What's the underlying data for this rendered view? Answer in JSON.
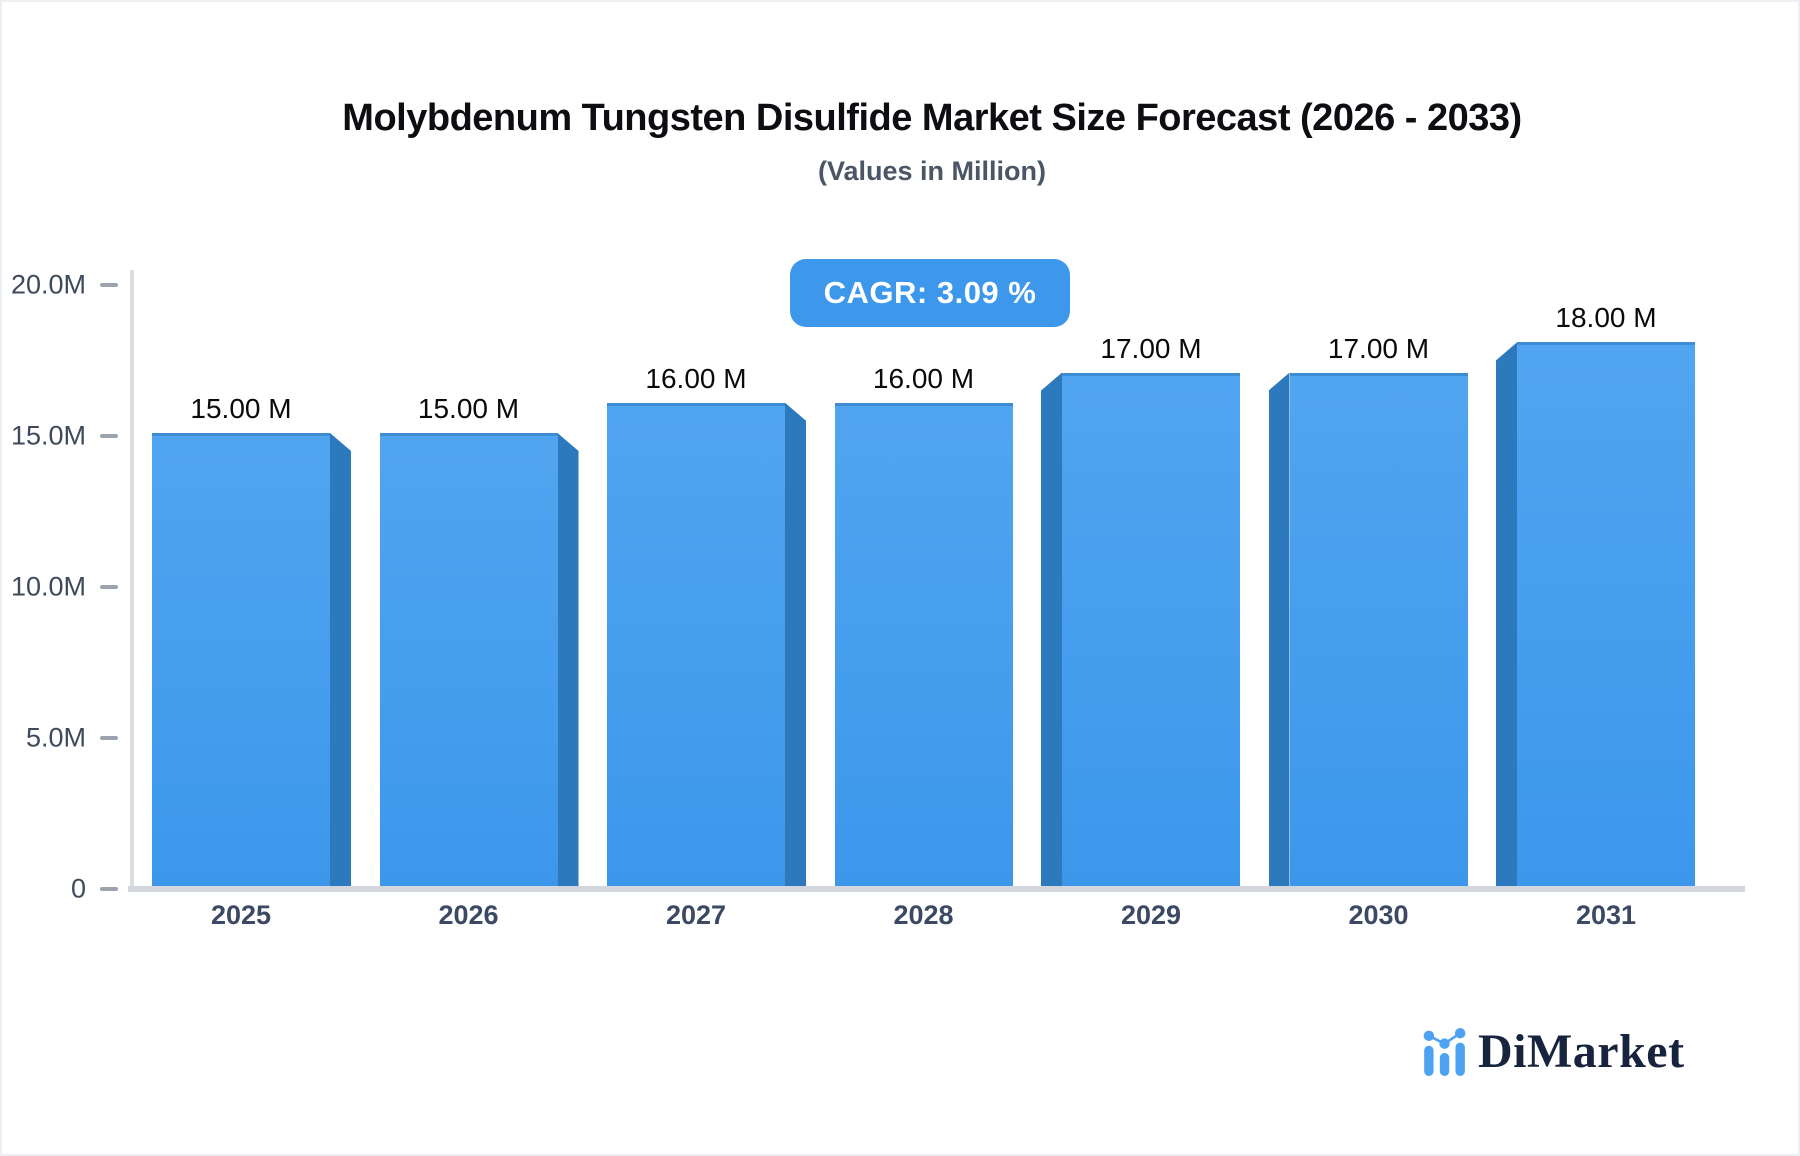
{
  "title": "Molybdenum Tungsten Disulfide Market Size Forecast (2026 - 2033)",
  "subtitle": "(Values in Million)",
  "cagr_badge": "CAGR: 3.09 %",
  "chart_data": {
    "type": "bar",
    "title": "Molybdenum Tungsten Disulfide Market Size Forecast (2026 - 2033)",
    "subtitle": "(Values in Million)",
    "unit": "Million",
    "categories": [
      "2025",
      "2026",
      "2027",
      "2028",
      "2029",
      "2030",
      "2031"
    ],
    "values": [
      15,
      15,
      16,
      16,
      17,
      17,
      18
    ],
    "value_labels": [
      "15.00 M",
      "15.00 M",
      "16.00 M",
      "16.00 M",
      "17.00 M",
      "17.00 M",
      "18.00 M"
    ],
    "ylim": [
      0,
      20
    ],
    "yticks": [
      {
        "value": 20,
        "label": "20.0M"
      },
      {
        "value": 15,
        "label": "15.0M"
      },
      {
        "value": 10,
        "label": "10.0M"
      },
      {
        "value": 5,
        "label": "5.0M"
      },
      {
        "value": 0,
        "label": "0"
      }
    ],
    "grid": false,
    "legend": false,
    "bar_color": "#3d98ec",
    "bar_side_color": "#2c79be",
    "accent_color": "#3d98ec"
  },
  "logo": {
    "text": "DiMarket",
    "icon": "bar-line-chart-icon",
    "color": "#4da2f2"
  }
}
